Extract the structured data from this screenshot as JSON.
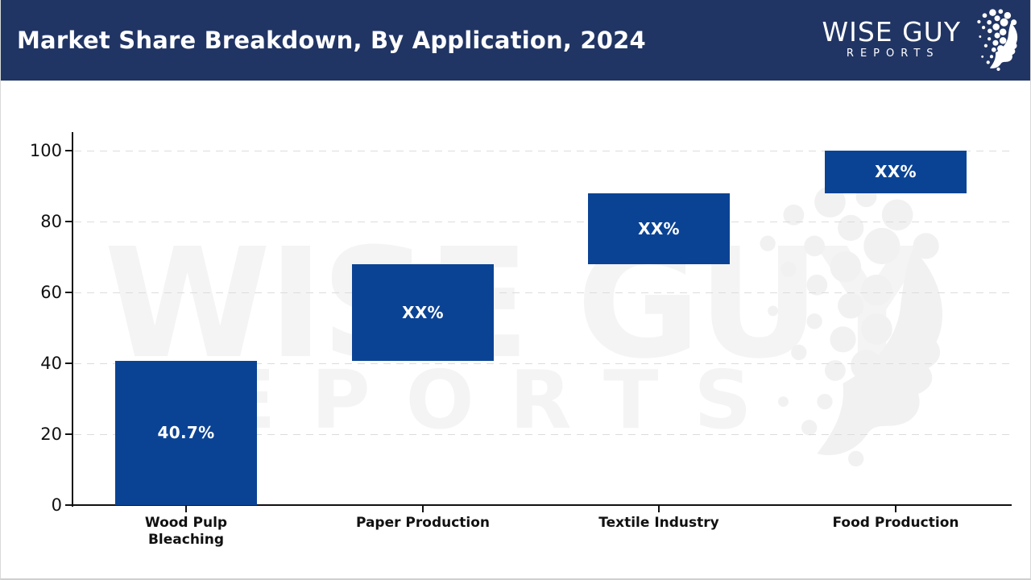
{
  "header": {
    "title": "Market Share Breakdown, By Application, 2024",
    "logo": {
      "line1": "WISE GUY",
      "line2": "REPORTS"
    }
  },
  "watermark": {
    "line1": "WISE GUY",
    "line2": "REPORTS"
  },
  "chart_data": {
    "type": "bar",
    "subtype": "waterfall",
    "title": "Market Share Breakdown, By Application, 2024",
    "categories": [
      "Wood Pulp\nBleaching",
      "Paper Production",
      "Textile Industry",
      "Food Production"
    ],
    "series": [
      {
        "application": "Wood Pulp Bleaching",
        "start": 0,
        "end": 40.7,
        "label": "40.7%"
      },
      {
        "application": "Paper Production",
        "start": 40.7,
        "end": 68,
        "label": "XX%"
      },
      {
        "application": "Textile Industry",
        "start": 68,
        "end": 88,
        "label": "XX%"
      },
      {
        "application": "Food Production",
        "start": 88,
        "end": 100,
        "label": "XX%"
      }
    ],
    "yticks": [
      0,
      20,
      40,
      60,
      80,
      100
    ],
    "ylim": [
      0,
      100
    ],
    "xlabel": "",
    "ylabel": "",
    "grid": "dashed-horizontal",
    "legend": "none",
    "bar_color": "#0b4394",
    "label_color": "#ffffff",
    "axis_color": "#111111",
    "header_color": "#213564"
  }
}
